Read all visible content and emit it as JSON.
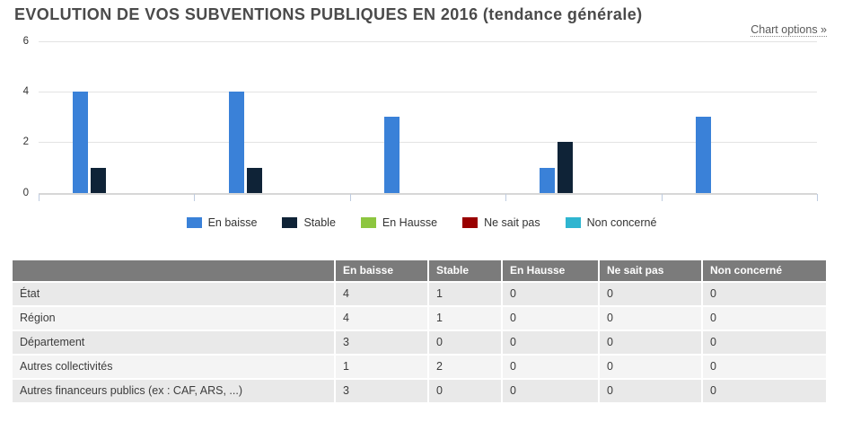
{
  "header": {
    "title": "EVOLUTION DE VOS SUBVENTIONS PUBLIQUES EN 2016 (tendance générale)",
    "chart_options_label": "Chart options »"
  },
  "chart_data": {
    "type": "bar",
    "title": "EVOLUTION DE VOS SUBVENTIONS PUBLIQUES EN 2016 (tendance générale)",
    "categories": [
      "État",
      "Région",
      "Département",
      "Autres collectivités",
      "Autres financeurs publics (ex : CAF, ARS, ...)"
    ],
    "series": [
      {
        "name": "En baisse",
        "color": "#3a81d8",
        "values": [
          4,
          4,
          3,
          1,
          3
        ]
      },
      {
        "name": "Stable",
        "color": "#0f2337",
        "values": [
          1,
          1,
          0,
          2,
          0
        ]
      },
      {
        "name": "En Hausse",
        "color": "#8dc63f",
        "values": [
          0,
          0,
          0,
          0,
          0
        ]
      },
      {
        "name": "Ne sait pas",
        "color": "#990000",
        "values": [
          0,
          0,
          0,
          0,
          0
        ]
      },
      {
        "name": "Non concerné",
        "color": "#2fb5d0",
        "values": [
          0,
          0,
          0,
          0,
          0
        ]
      }
    ],
    "ylim": [
      0,
      6
    ],
    "yticks": [
      0,
      2,
      4,
      6
    ],
    "grid": true,
    "legend_position": "bottom",
    "x_axis_labels_visible": false,
    "xlabel": "",
    "ylabel": ""
  },
  "table": {
    "headers": [
      "",
      "En baisse",
      "Stable",
      "En Hausse",
      "Ne sait pas",
      "Non concerné"
    ],
    "rows": [
      {
        "label": "État",
        "values": [
          4,
          1,
          0,
          0,
          0
        ]
      },
      {
        "label": "Région",
        "values": [
          4,
          1,
          0,
          0,
          0
        ]
      },
      {
        "label": "Département",
        "values": [
          3,
          0,
          0,
          0,
          0
        ]
      },
      {
        "label": "Autres collectivités",
        "values": [
          1,
          2,
          0,
          0,
          0
        ]
      },
      {
        "label": "Autres financeurs publics (ex : CAF, ARS, ...)",
        "values": [
          3,
          0,
          0,
          0,
          0
        ]
      }
    ]
  }
}
